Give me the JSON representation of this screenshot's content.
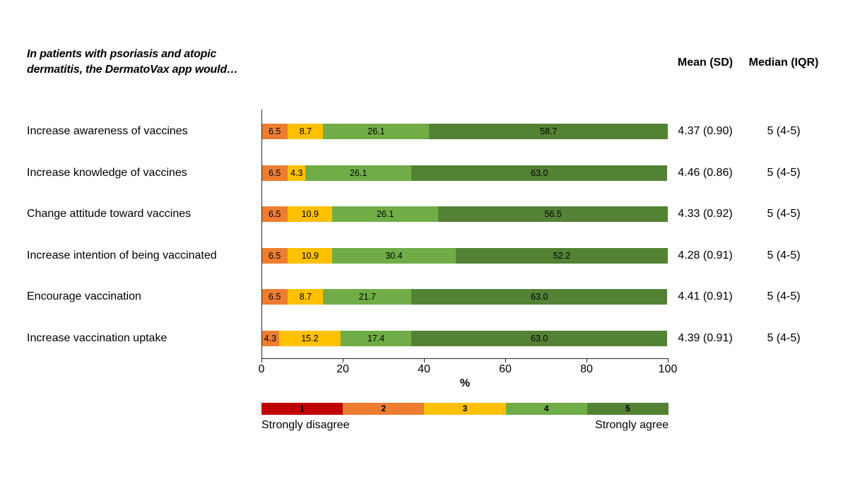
{
  "title": "In patients with psoriasis and atopic dermatitis, the DermatoVax app would…",
  "columns": {
    "mean": "Mean (SD)",
    "median": "Median (IQR)"
  },
  "chart_data": {
    "type": "bar",
    "stacked": true,
    "orientation": "horizontal",
    "xlabel": "%",
    "xlim": [
      0,
      100
    ],
    "x_ticks": [
      "0",
      "20",
      "40",
      "60",
      "80",
      "100"
    ],
    "grid": false,
    "scale": {
      "points": [
        "1",
        "2",
        "3",
        "4",
        "5"
      ],
      "colors": {
        "1": "#C00000",
        "2": "#ED7D31",
        "3": "#FFC000",
        "4": "#70AD47",
        "5": "#548235"
      },
      "min_label": "Strongly disagree",
      "max_label": "Strongly agree"
    },
    "rows": [
      {
        "label": "Increase awareness of vaccines",
        "segments": [
          {
            "scale": "2",
            "pct": "6.5"
          },
          {
            "scale": "3",
            "pct": "8.7"
          },
          {
            "scale": "4",
            "pct": "26.1"
          },
          {
            "scale": "5",
            "pct": "58.7"
          }
        ],
        "mean_sd": "4.37 (0.90)",
        "median_iqr": "5 (4-5)"
      },
      {
        "label": "Increase knowledge of vaccines",
        "segments": [
          {
            "scale": "2",
            "pct": "6.5"
          },
          {
            "scale": "3",
            "pct": "4.3"
          },
          {
            "scale": "4",
            "pct": "26.1"
          },
          {
            "scale": "5",
            "pct": "63.0"
          }
        ],
        "mean_sd": "4.46 (0.86)",
        "median_iqr": "5 (4-5)"
      },
      {
        "label": "Change attitude toward vaccines",
        "segments": [
          {
            "scale": "2",
            "pct": "6.5"
          },
          {
            "scale": "3",
            "pct": "10.9"
          },
          {
            "scale": "4",
            "pct": "26.1"
          },
          {
            "scale": "5",
            "pct": "56.5"
          }
        ],
        "mean_sd": "4.33 (0.92)",
        "median_iqr": "5 (4-5)"
      },
      {
        "label": "Increase intention of being vaccinated",
        "segments": [
          {
            "scale": "2",
            "pct": "6.5"
          },
          {
            "scale": "3",
            "pct": "10.9"
          },
          {
            "scale": "4",
            "pct": "30.4"
          },
          {
            "scale": "5",
            "pct": "52.2"
          }
        ],
        "mean_sd": "4.28 (0.91)",
        "median_iqr": "5 (4-5)"
      },
      {
        "label": "Encourage vaccination",
        "segments": [
          {
            "scale": "2",
            "pct": "6.5"
          },
          {
            "scale": "3",
            "pct": "8.7"
          },
          {
            "scale": "4",
            "pct": "21.7"
          },
          {
            "scale": "5",
            "pct": "63.0"
          }
        ],
        "mean_sd": "4.41 (0.91)",
        "median_iqr": "5 (4-5)"
      },
      {
        "label": "Increase vaccination uptake",
        "segments": [
          {
            "scale": "2",
            "pct": "4.3"
          },
          {
            "scale": "3",
            "pct": "15.2"
          },
          {
            "scale": "4",
            "pct": "17.4"
          },
          {
            "scale": "5",
            "pct": "63.0"
          }
        ],
        "mean_sd": "4.39 (0.91)",
        "median_iqr": "5 (4-5)"
      }
    ]
  }
}
